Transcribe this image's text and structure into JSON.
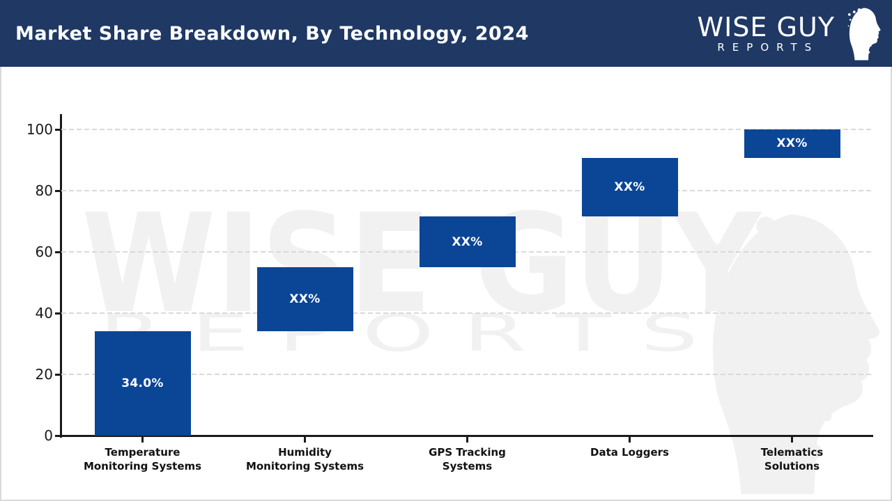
{
  "header": {
    "title": "Market Share Breakdown, By Technology, 2024",
    "logo": {
      "line1": "WISE GUY",
      "line2": "REPORTS"
    }
  },
  "watermark": {
    "line1": "WISE GUY",
    "line2": "R E P O R T S"
  },
  "colors": {
    "header_bg": "#1f3864",
    "bar": "#0b4596",
    "axis": "#1a1a1a",
    "grid": "#d9d9d9",
    "watermark": "#f1f1f1"
  },
  "chart_data": {
    "type": "bar",
    "subtype": "waterfall",
    "title": "Market Share Breakdown, By Technology, 2024",
    "categories": [
      "Temperature\nMonitoring Systems",
      "Humidity\nMonitoring Systems",
      "GPS Tracking\nSystems",
      "Data Loggers",
      "Telematics\nSolutions"
    ],
    "segments": [
      {
        "category": "Temperature Monitoring Systems",
        "start": 0,
        "end": 34,
        "label": "34.0%"
      },
      {
        "category": "Humidity Monitoring Systems",
        "start": 34,
        "end": 55,
        "label": "XX%"
      },
      {
        "category": "GPS Tracking Systems",
        "start": 55,
        "end": 71.5,
        "label": "XX%"
      },
      {
        "category": "Data Loggers",
        "start": 71.5,
        "end": 90.7,
        "label": "XX%"
      },
      {
        "category": "Telematics Solutions",
        "start": 90.7,
        "end": 100,
        "label": "XX%"
      }
    ],
    "yticks": [
      0,
      20,
      40,
      60,
      80,
      100
    ],
    "ylim": [
      0,
      105
    ],
    "grid": "horizontal-dashed",
    "legend": "none",
    "xlabel": "",
    "ylabel": ""
  }
}
